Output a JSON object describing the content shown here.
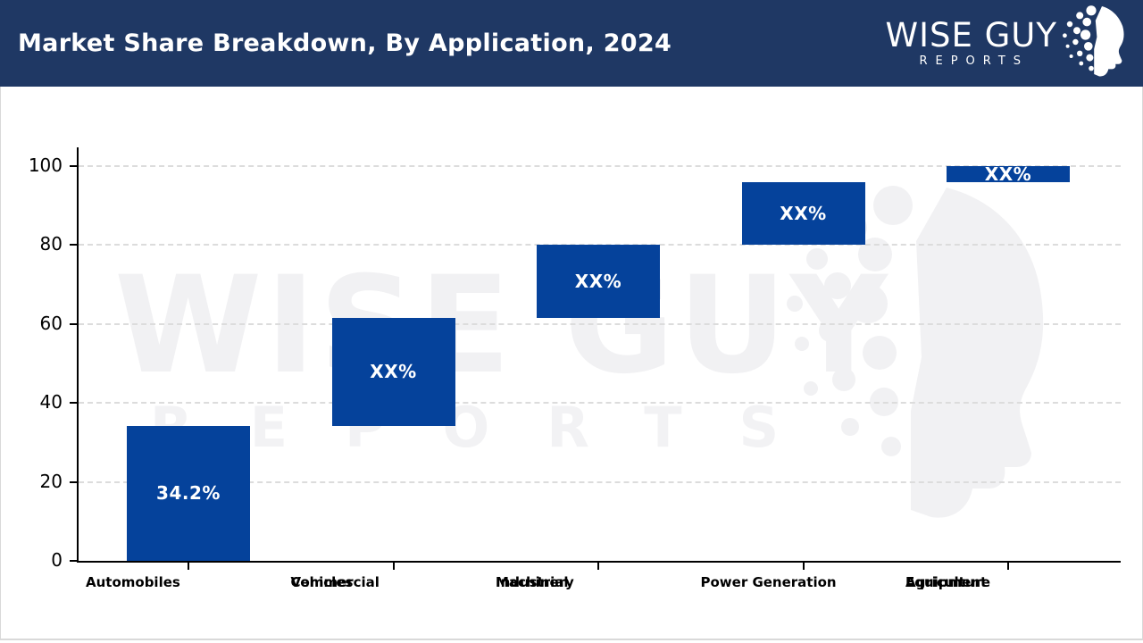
{
  "header": {
    "title": "Market Share Breakdown, By Application, 2024",
    "logo": {
      "line1": "WISE GUY",
      "line2": "REPORTS"
    }
  },
  "watermark": {
    "line1": "WISE GUY",
    "line2": "REPORTS"
  },
  "chart_data": {
    "type": "bar",
    "subtype": "waterfall",
    "title": "Market Share Breakdown, By Application, 2024",
    "xlabel": "",
    "ylabel": "",
    "categories": [
      "Automobiles",
      "Commercial Vehicles",
      "Industrial Machinery",
      "Power Generation",
      "Agriculture Equipment"
    ],
    "segments": [
      {
        "category": "Automobiles",
        "label_lines": [
          "Automobiles"
        ],
        "start": 0,
        "end": 34.2,
        "value_label": "34.2%"
      },
      {
        "category": "Commercial Vehicles",
        "label_lines": [
          "Commercial",
          "Vehicles"
        ],
        "start": 34.2,
        "end": 61.5,
        "value_label": "XX%"
      },
      {
        "category": "Industrial Machinery",
        "label_lines": [
          "Industrial",
          "Machinery"
        ],
        "start": 61.5,
        "end": 80,
        "value_label": "XX%"
      },
      {
        "category": "Power Generation",
        "label_lines": [
          "Power Generation"
        ],
        "start": 80,
        "end": 95.9,
        "value_label": "XX%"
      },
      {
        "category": "Agriculture Equipment",
        "label_lines": [
          "Agriculture",
          "Equipment"
        ],
        "start": 95.9,
        "end": 100,
        "value_label": "XX%"
      }
    ],
    "ylim": [
      0,
      100
    ],
    "yticks": [
      0,
      20,
      40,
      60,
      80,
      100
    ],
    "grid": "horizontal-dashed",
    "legend": "none",
    "bar_color": "#05429b",
    "colors": {
      "header_bg": "#1f3864",
      "grid": "#dcdcdc",
      "axis": "#000000",
      "bar_label": "#ffffff",
      "tick_label": "#000000"
    }
  }
}
